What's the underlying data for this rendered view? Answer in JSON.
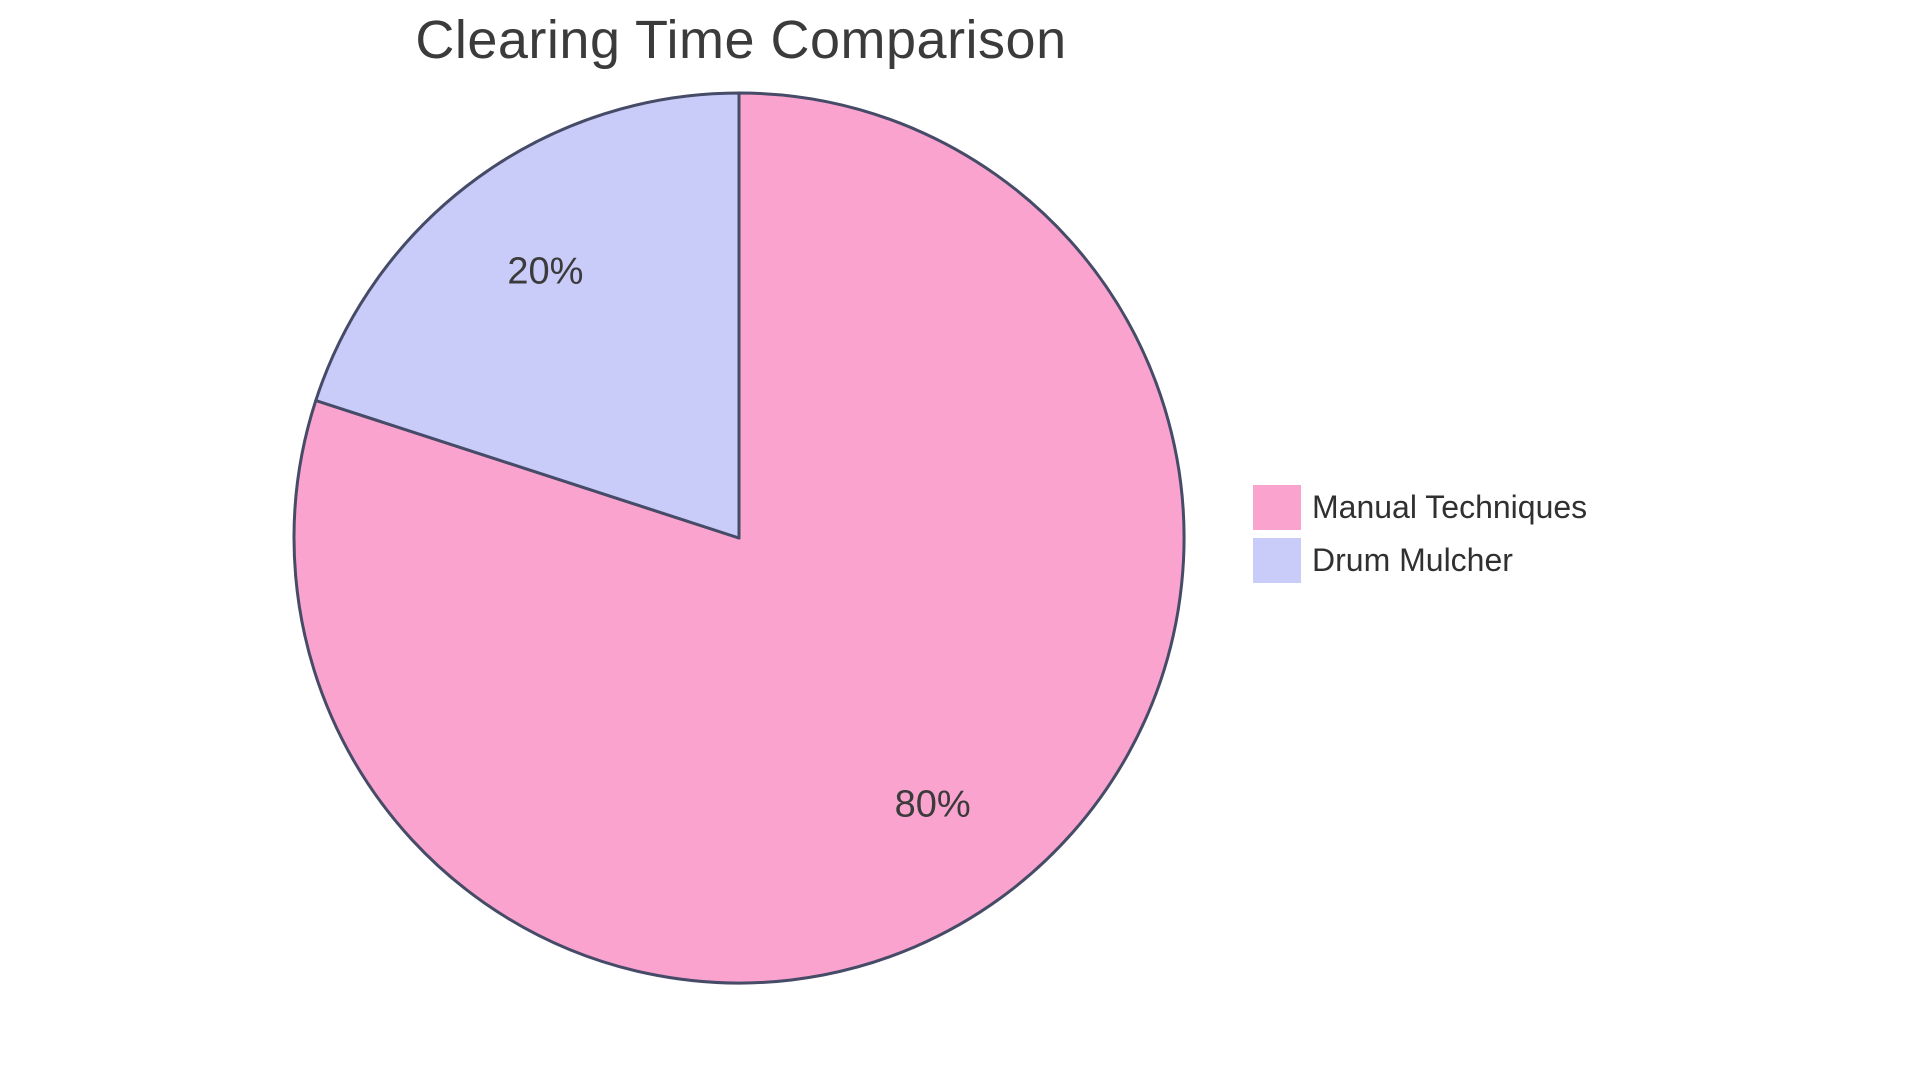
{
  "chart_data": {
    "type": "pie",
    "title": "Clearing Time Comparison",
    "slices": [
      {
        "label": "Manual Techniques",
        "value": 80,
        "display_label": "80%",
        "color": "#FAA3CE"
      },
      {
        "label": "Drum Mulcher",
        "value": 20,
        "display_label": "20%",
        "color": "#C9CBF8"
      }
    ],
    "start_angle_deg": -90,
    "direction": "clockwise",
    "slice_border_color": "#464B68",
    "slice_border_width": 3,
    "percent_label_color": "#3B3B3B",
    "title_color": "#3B3B3B",
    "legend": {
      "position": "right",
      "text_color": "#303030"
    }
  }
}
